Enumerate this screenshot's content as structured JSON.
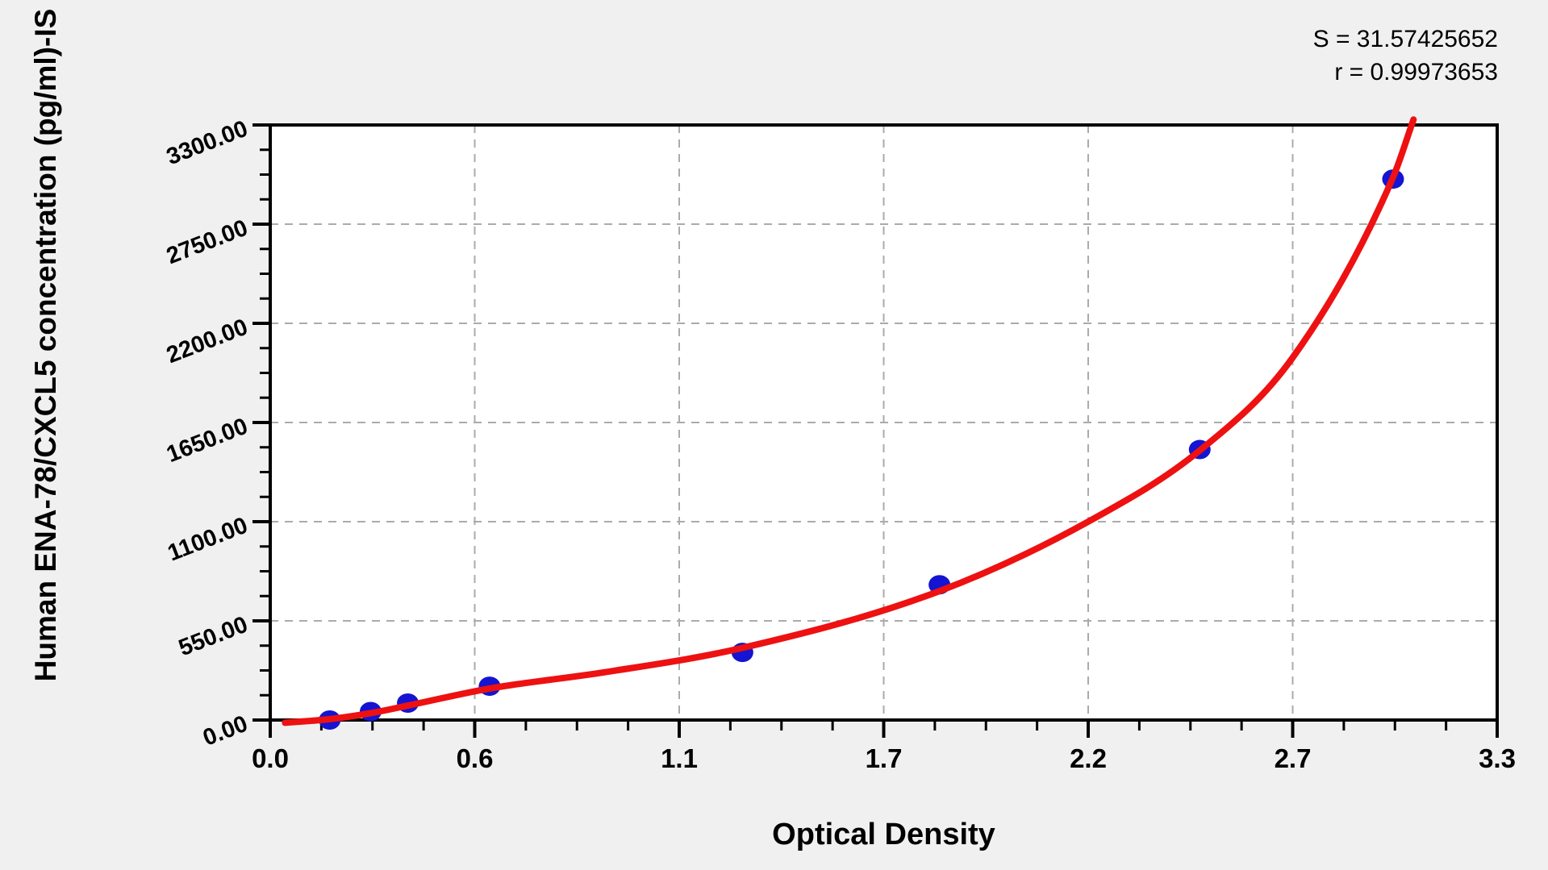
{
  "stats": {
    "s_line": "S = 31.57425652",
    "r_line": "r = 0.99973653"
  },
  "chart_data": {
    "type": "scatter",
    "title": "",
    "xlabel": "Optical Density",
    "ylabel": "Human ENA-78/CXCL5 concentration (pg/ml)-IS",
    "xlim": [
      0,
      3.3
    ],
    "ylim": [
      0,
      3300
    ],
    "x_ticks": {
      "values": [
        0,
        0.55,
        1.1,
        1.65,
        2.2,
        2.75,
        3.3
      ],
      "labels": [
        "0.0",
        "0.6",
        "1.1",
        "1.7",
        "2.2",
        "2.7",
        "3.3"
      ],
      "minor_divisions": 4
    },
    "y_ticks": {
      "values": [
        0,
        550,
        1100,
        1650,
        2200,
        2750,
        3300
      ],
      "labels": [
        "0.00",
        "550.00",
        "1100.00",
        "1650.00",
        "2200.00",
        "2750.00",
        "3300.00"
      ],
      "minor_divisions": 4
    },
    "grid": "dashed gray at major ticks",
    "legend": "none",
    "points": [
      {
        "od": 0.16,
        "conc": 0
      },
      {
        "od": 0.27,
        "conc": 46.9
      },
      {
        "od": 0.37,
        "conc": 93.8
      },
      {
        "od": 0.59,
        "conc": 187.5
      },
      {
        "od": 1.27,
        "conc": 375
      },
      {
        "od": 1.8,
        "conc": 750
      },
      {
        "od": 2.5,
        "conc": 1500
      },
      {
        "od": 3.02,
        "conc": 3000
      }
    ],
    "fit_curve_samples": [
      [
        0.04,
        -15
      ],
      [
        0.16,
        5
      ],
      [
        0.27,
        38
      ],
      [
        0.37,
        80
      ],
      [
        0.59,
        175
      ],
      [
        0.9,
        265
      ],
      [
        1.27,
        400
      ],
      [
        1.8,
        715
      ],
      [
        2.2,
        1100
      ],
      [
        2.5,
        1495
      ],
      [
        2.75,
        2010
      ],
      [
        3.02,
        3010
      ],
      [
        3.075,
        3330
      ]
    ],
    "colors": {
      "point": "#1414d2",
      "curve": "#ee1111",
      "grid": "#ababab",
      "axis": "#000000",
      "plot_bg": "#ffffff",
      "page_bg": "#f0f0f0"
    }
  }
}
